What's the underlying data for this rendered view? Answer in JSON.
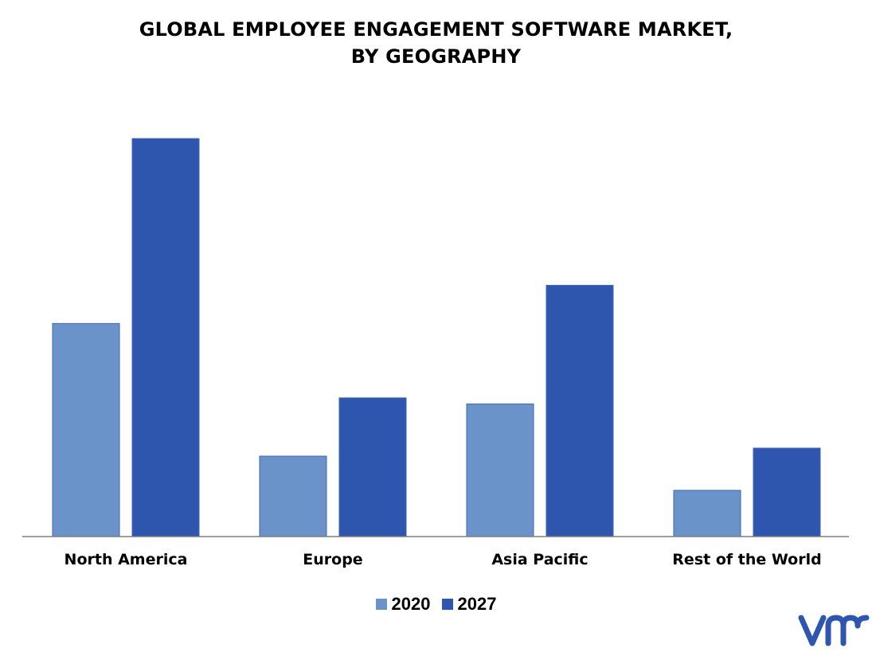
{
  "title_line1": "GLOBAL EMPLOYEE ENGAGEMENT SOFTWARE MARKET,",
  "title_line2": "BY GEOGRAPHY",
  "logo_text": "vmr",
  "colors": {
    "series_2020": "#6a94c9",
    "series_2027": "#2e56ae",
    "axis": "#7f7f7f",
    "logo": "#2e56ae"
  },
  "chart_data": {
    "type": "bar",
    "categories": [
      "North America",
      "Europe",
      "Asia Pacific",
      "Rest of the World"
    ],
    "series": [
      {
        "name": "2020",
        "values": [
          53,
          20,
          33,
          11.5
        ]
      },
      {
        "name": "2027",
        "values": [
          99,
          34.5,
          62.5,
          22
        ]
      }
    ],
    "title": "GLOBAL EMPLOYEE ENGAGEMENT SOFTWARE MARKET, BY GEOGRAPHY",
    "ylim": [
      0,
      100
    ],
    "legend_position": "bottom",
    "grid": false
  }
}
